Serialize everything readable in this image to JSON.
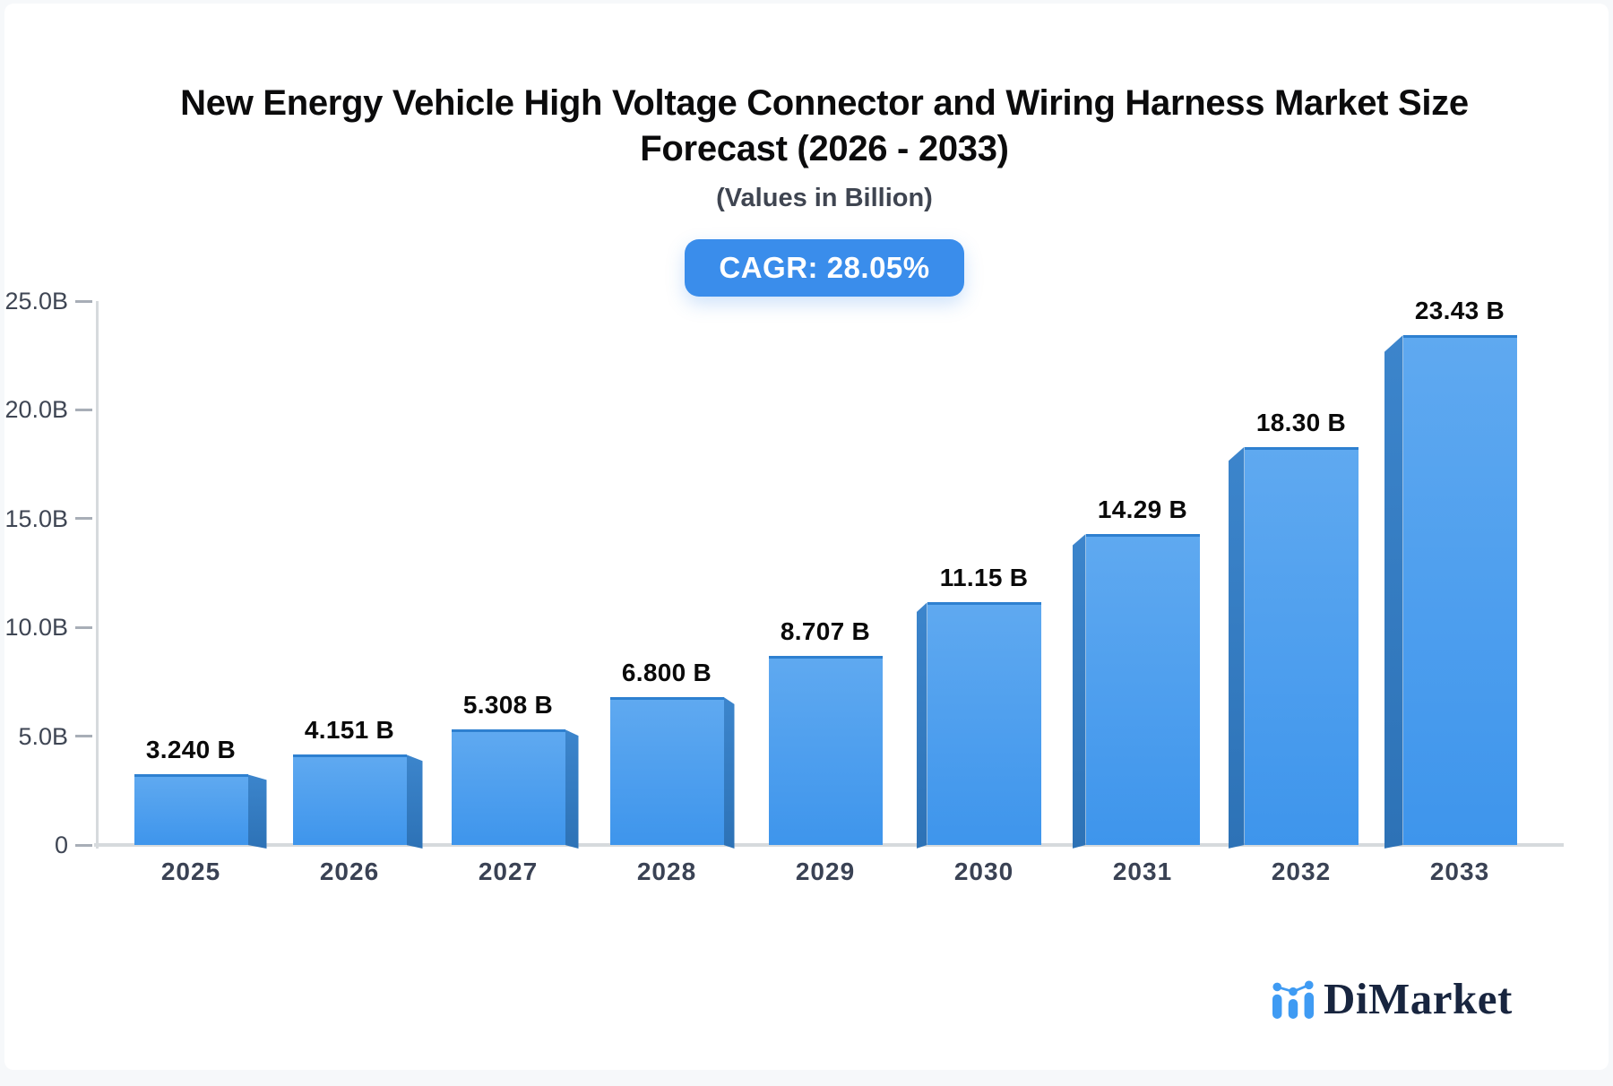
{
  "header": {
    "title_line1": "New Energy Vehicle High Voltage Connector and Wiring Harness Market Size",
    "title_line2": "Forecast (2026 - 2033)",
    "subtitle": "(Values in Billion)",
    "cagr_label": "CAGR: 28.05%"
  },
  "brand": {
    "name": "DiMarket",
    "icon": "bar-chart-sparkline-icon"
  },
  "chart_data": {
    "type": "bar",
    "title": "New Energy Vehicle High Voltage Connector and Wiring Harness Market Size Forecast (2026 - 2033)",
    "subtitle": "(Values in Billion)",
    "cagr_percent": 28.05,
    "categories": [
      "2025",
      "2026",
      "2027",
      "2028",
      "2029",
      "2030",
      "2031",
      "2032",
      "2033"
    ],
    "values": [
      3.24,
      4.151,
      5.308,
      6.8,
      8.707,
      11.15,
      14.29,
      18.3,
      23.43
    ],
    "bar_labels": [
      "3.240 B",
      "4.151 B",
      "5.308 B",
      "6.800 B",
      "8.707 B",
      "11.15 B",
      "14.29 B",
      "18.30 B",
      "23.43 B"
    ],
    "xlabel": "",
    "ylabel": "",
    "ylim": [
      0,
      25
    ],
    "yticks": [
      {
        "value": 0,
        "label": "0"
      },
      {
        "value": 5,
        "label": "5.0B"
      },
      {
        "value": 10,
        "label": "10.0B"
      },
      {
        "value": 15,
        "label": "15.0B"
      },
      {
        "value": 20,
        "label": "20.0B"
      },
      {
        "value": 25,
        "label": "25.0B"
      }
    ],
    "grid": false,
    "legend": false,
    "bar_style": "3d-perspective",
    "colors": {
      "bar_face_top": "#5FA9F0",
      "bar_face_bottom": "#3E95EC",
      "bar_side": "#2F77BC",
      "bar_top_edge": "#2E80D0",
      "badge_bg": "#3A8DEB",
      "badge_text": "#FFFFFF",
      "axis_line": "#D6DADD",
      "tick_mark": "#A8AEB7",
      "tick_label": "#3F4654",
      "category_label": "#3A4254",
      "value_label": "#0A0A0A",
      "title": "#0B0B0C",
      "subtitle": "#3F4551",
      "brand_text": "#18253F",
      "brand_icon": "#3F9BF3"
    }
  }
}
